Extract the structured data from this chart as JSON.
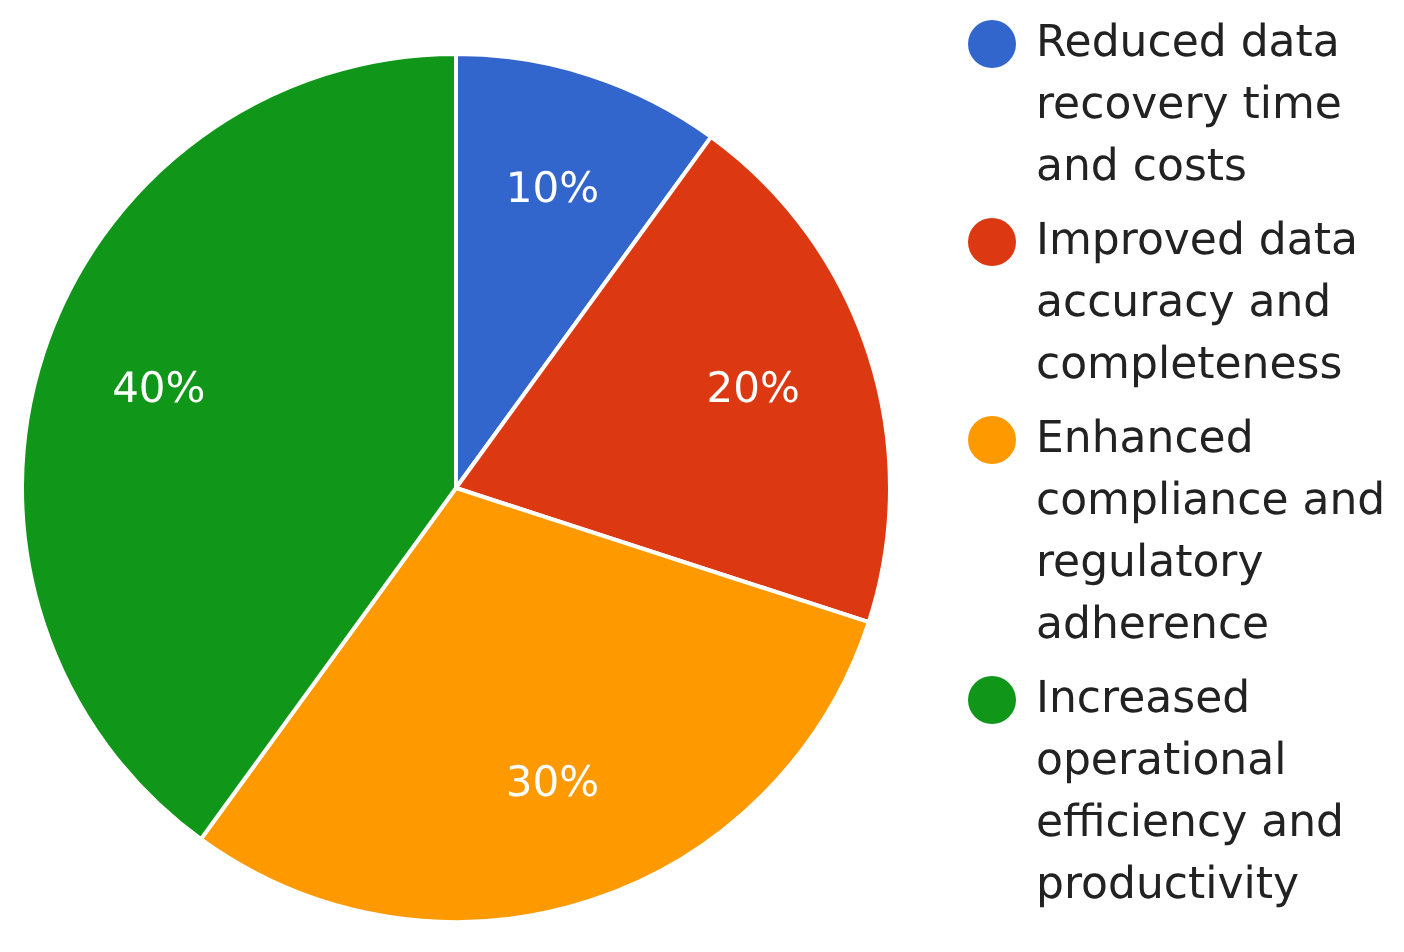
{
  "chart_data": {
    "type": "pie",
    "categories": [
      "Reduced data recovery time and costs",
      "Improved data accuracy and completeness",
      "Enhanced compliance and regulatory adherence",
      "Increased operational efficiency and productivity"
    ],
    "values": [
      10,
      20,
      30,
      40
    ],
    "colors": [
      "#3366cc",
      "#dc3912",
      "#ff9900",
      "#109618"
    ],
    "value_labels": [
      "10%",
      "20%",
      "30%",
      "40%"
    ],
    "legend": "right"
  }
}
